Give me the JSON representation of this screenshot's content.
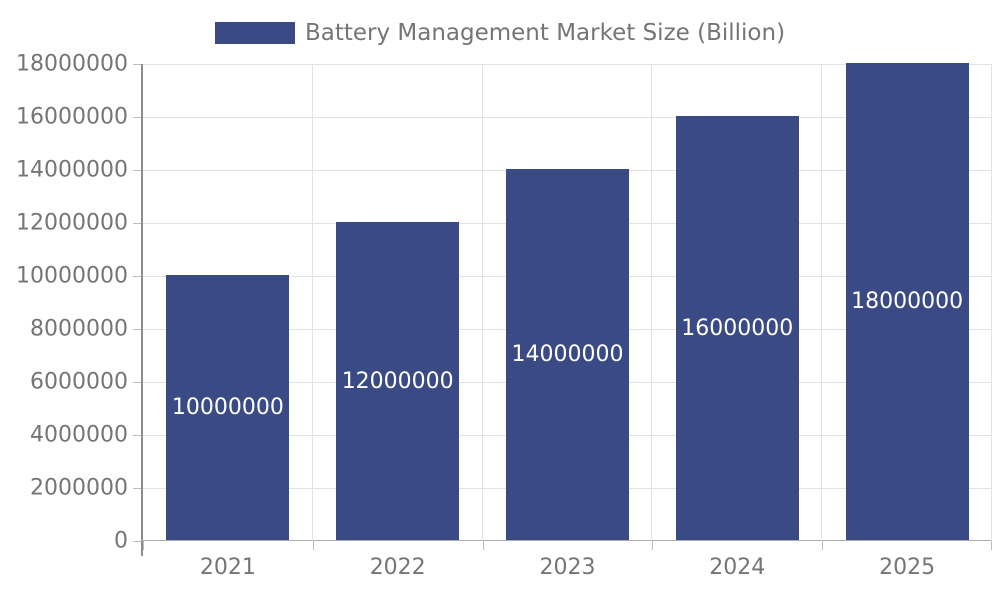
{
  "legend": {
    "label": "Battery Management Market Size (Billion)"
  },
  "chart_data": {
    "type": "bar",
    "title": "Battery Management Market Size (Billion)",
    "series_name": "Battery Management Market Size (Billion)",
    "categories": [
      "2021",
      "2022",
      "2023",
      "2024",
      "2025"
    ],
    "values": [
      10000000,
      12000000,
      14000000,
      16000000,
      18000000
    ],
    "value_labels": [
      "10000000",
      "12000000",
      "14000000",
      "16000000",
      "18000000"
    ],
    "xlabel": "",
    "ylabel": "",
    "ylim": [
      0,
      18000000
    ],
    "ytick_step": 2000000,
    "ytick_labels": [
      "0",
      "2000000",
      "4000000",
      "6000000",
      "8000000",
      "10000000",
      "12000000",
      "14000000",
      "16000000",
      "18000000"
    ],
    "grid": "on",
    "legend_position": "top",
    "bar_label_position": "center-inside",
    "colors": {
      "bar": "#3A4A85",
      "bar_label_text": "#FFFFFF",
      "axis_text": "#757575",
      "title_text": "#757575",
      "gridline": "#E2E2E2",
      "y_axis_line": "#8C8C8C",
      "x_axis_line": "#ABABAB",
      "tick": "#BDBDBD",
      "background": "#FFFFFF"
    }
  }
}
